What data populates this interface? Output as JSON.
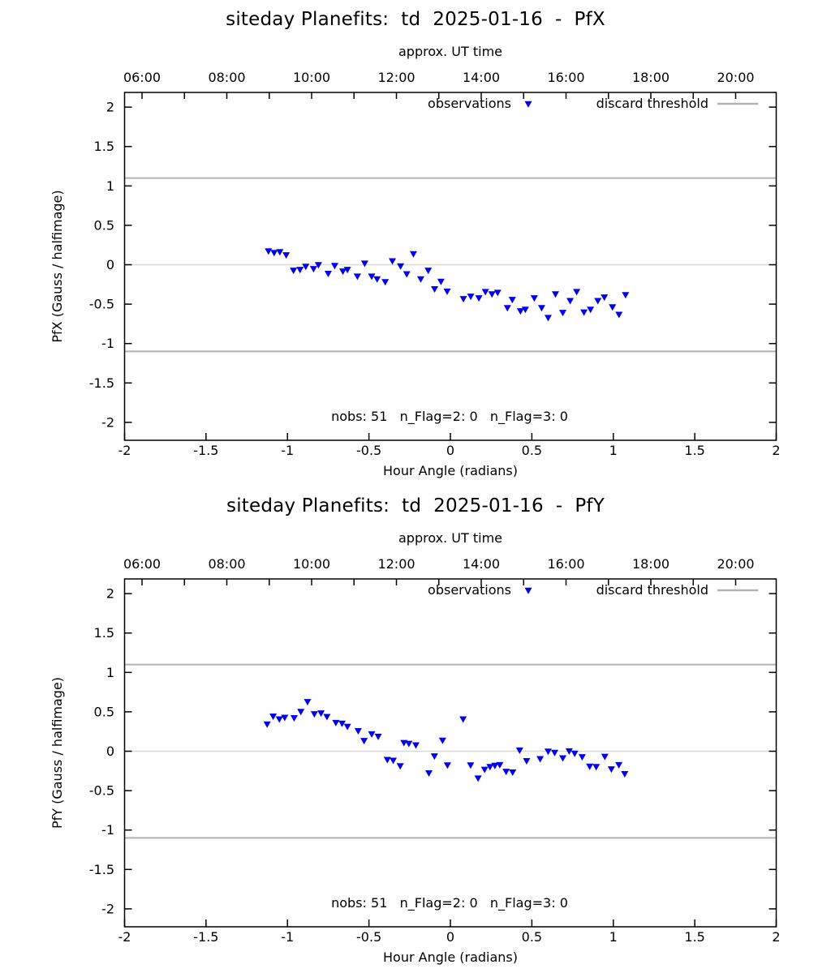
{
  "page": {
    "background": "#ffffff"
  },
  "chart_data": [
    {
      "type": "scatter",
      "title": "siteday Planefits:  td  2025-01-16  -  PfX",
      "top_axis": {
        "label": "approx. UT time",
        "tick_labels": [
          "06:00",
          "08:00",
          "10:00",
          "12:00",
          "14:00",
          "16:00",
          "18:00",
          "20:00"
        ]
      },
      "xlabel": "Hour Angle (radians)",
      "ylabel": "PfX (Gauss / halfimage)",
      "xlim": [
        -2,
        2
      ],
      "ylim": [
        -2.2,
        2.2
      ],
      "x_ticks": [
        -2,
        -1.5,
        -1,
        -0.5,
        0,
        0.5,
        1,
        1.5,
        2
      ],
      "x_tick_labels": [
        "-2",
        "-1.5",
        "-1",
        "-0.5",
        "0",
        "0.5",
        "1",
        "1.5",
        "2"
      ],
      "y_ticks": [
        -2,
        -1.5,
        -1,
        -0.5,
        0,
        0.5,
        1,
        1.5,
        2
      ],
      "y_tick_labels": [
        "-2",
        "-1.5",
        "-1",
        "-0.5",
        "0",
        "0.5",
        "1",
        "1.5",
        "2"
      ],
      "grid": "zero-line-only",
      "zero_line_y": 0,
      "threshold_y": [
        1.1,
        -1.1
      ],
      "annotation": "nobs: 51   n_Flag=2: 0   n_Flag=3: 0",
      "legend": [
        {
          "label": "observations",
          "symbol": "triangle-down"
        },
        {
          "label": "discard threshold",
          "symbol": "line"
        }
      ],
      "legend_position": "top-inside",
      "colors": {
        "marker": "#0000ee",
        "threshold": "#b3b3b3",
        "zero_line": "#d9d9d9",
        "border": "#000000"
      },
      "series": [
        {
          "name": "observations",
          "marker": "triangle-down",
          "color": "#0000ee",
          "points": [
            [
              -1.117,
              0.175
            ],
            [
              -1.082,
              0.155
            ],
            [
              -1.047,
              0.165
            ],
            [
              -1.008,
              0.125
            ],
            [
              -0.963,
              -0.07
            ],
            [
              -0.923,
              -0.06
            ],
            [
              -0.888,
              -0.02
            ],
            [
              -0.84,
              -0.05
            ],
            [
              -0.81,
              0.0
            ],
            [
              -0.75,
              -0.11
            ],
            [
              -0.71,
              -0.01
            ],
            [
              -0.66,
              -0.08
            ],
            [
              -0.632,
              -0.06
            ],
            [
              -0.571,
              -0.145
            ],
            [
              -0.526,
              0.02
            ],
            [
              -0.483,
              -0.145
            ],
            [
              -0.45,
              -0.18
            ],
            [
              -0.4,
              -0.215
            ],
            [
              -0.356,
              0.05
            ],
            [
              -0.306,
              -0.015
            ],
            [
              -0.268,
              -0.115
            ],
            [
              -0.227,
              0.14
            ],
            [
              -0.182,
              -0.18
            ],
            [
              -0.136,
              -0.07
            ],
            [
              -0.097,
              -0.305
            ],
            [
              -0.058,
              -0.21
            ],
            [
              -0.02,
              -0.335
            ],
            [
              0.08,
              -0.43
            ],
            [
              0.125,
              -0.4
            ],
            [
              0.175,
              -0.42
            ],
            [
              0.215,
              -0.34
            ],
            [
              0.255,
              -0.37
            ],
            [
              0.29,
              -0.35
            ],
            [
              0.35,
              -0.545
            ],
            [
              0.38,
              -0.44
            ],
            [
              0.43,
              -0.585
            ],
            [
              0.46,
              -0.565
            ],
            [
              0.515,
              -0.42
            ],
            [
              0.56,
              -0.545
            ],
            [
              0.6,
              -0.67
            ],
            [
              0.645,
              -0.37
            ],
            [
              0.69,
              -0.605
            ],
            [
              0.735,
              -0.455
            ],
            [
              0.775,
              -0.34
            ],
            [
              0.82,
              -0.6
            ],
            [
              0.86,
              -0.565
            ],
            [
              0.905,
              -0.455
            ],
            [
              0.945,
              -0.41
            ],
            [
              0.995,
              -0.535
            ],
            [
              1.035,
              -0.63
            ],
            [
              1.075,
              -0.38
            ]
          ]
        }
      ],
      "stats": {
        "nobs": 51,
        "n_flag_2": 0,
        "n_flag_3": 0
      }
    },
    {
      "type": "scatter",
      "title": "siteday Planefits:  td  2025-01-16  -  PfY",
      "top_axis": {
        "label": "approx. UT time",
        "tick_labels": [
          "06:00",
          "08:00",
          "10:00",
          "12:00",
          "14:00",
          "16:00",
          "18:00",
          "20:00"
        ]
      },
      "xlabel": "Hour Angle (radians)",
      "ylabel": "PfY (Gauss / halfimage)",
      "xlim": [
        -2,
        2
      ],
      "ylim": [
        -2.2,
        2.2
      ],
      "x_ticks": [
        -2,
        -1.5,
        -1,
        -0.5,
        0,
        0.5,
        1,
        1.5,
        2
      ],
      "x_tick_labels": [
        "-2",
        "-1.5",
        "-1",
        "-0.5",
        "0",
        "0.5",
        "1",
        "1.5",
        "2"
      ],
      "y_ticks": [
        -2,
        -1.5,
        -1,
        -0.5,
        0,
        0.5,
        1,
        1.5,
        2
      ],
      "y_tick_labels": [
        "-2",
        "-1.5",
        "-1",
        "-0.5",
        "0",
        "0.5",
        "1",
        "1.5",
        "2"
      ],
      "grid": "zero-line-only",
      "zero_line_y": 0,
      "threshold_y": [
        1.1,
        -1.1
      ],
      "annotation": "nobs: 51   n_Flag=2: 0   n_Flag=3: 0",
      "legend": [
        {
          "label": "observations",
          "symbol": "triangle-down"
        },
        {
          "label": "discard threshold",
          "symbol": "line"
        }
      ],
      "legend_position": "top-inside",
      "colors": {
        "marker": "#0000ee",
        "threshold": "#b3b3b3",
        "zero_line": "#d9d9d9",
        "border": "#000000"
      },
      "series": [
        {
          "name": "observations",
          "marker": "triangle-down",
          "color": "#0000ee",
          "points": [
            [
              -1.125,
              0.345
            ],
            [
              -1.088,
              0.445
            ],
            [
              -1.05,
              0.41
            ],
            [
              -1.017,
              0.43
            ],
            [
              -0.959,
              0.425
            ],
            [
              -0.918,
              0.505
            ],
            [
              -0.877,
              0.63
            ],
            [
              -0.835,
              0.475
            ],
            [
              -0.794,
              0.485
            ],
            [
              -0.758,
              0.44
            ],
            [
              -0.703,
              0.365
            ],
            [
              -0.665,
              0.355
            ],
            [
              -0.632,
              0.315
            ],
            [
              -0.566,
              0.26
            ],
            [
              -0.53,
              0.135
            ],
            [
              -0.483,
              0.22
            ],
            [
              -0.443,
              0.19
            ],
            [
              -0.387,
              -0.105
            ],
            [
              -0.351,
              -0.115
            ],
            [
              -0.308,
              -0.185
            ],
            [
              -0.285,
              0.11
            ],
            [
              -0.255,
              0.1
            ],
            [
              -0.212,
              0.08
            ],
            [
              -0.132,
              -0.275
            ],
            [
              -0.098,
              -0.06
            ],
            [
              -0.048,
              0.14
            ],
            [
              -0.018,
              -0.175
            ],
            [
              0.078,
              0.41
            ],
            [
              0.124,
              -0.175
            ],
            [
              0.17,
              -0.34
            ],
            [
              0.21,
              -0.23
            ],
            [
              0.243,
              -0.195
            ],
            [
              0.273,
              -0.18
            ],
            [
              0.303,
              -0.17
            ],
            [
              0.342,
              -0.255
            ],
            [
              0.382,
              -0.265
            ],
            [
              0.425,
              0.015
            ],
            [
              0.468,
              -0.12
            ],
            [
              0.551,
              -0.095
            ],
            [
              0.6,
              0.0
            ],
            [
              0.64,
              -0.015
            ],
            [
              0.69,
              -0.085
            ],
            [
              0.729,
              0.005
            ],
            [
              0.763,
              -0.025
            ],
            [
              0.809,
              -0.07
            ],
            [
              0.855,
              -0.19
            ],
            [
              0.895,
              -0.195
            ],
            [
              0.948,
              -0.065
            ],
            [
              0.988,
              -0.225
            ],
            [
              1.034,
              -0.17
            ],
            [
              1.07,
              -0.285
            ]
          ]
        }
      ],
      "stats": {
        "nobs": 51,
        "n_flag_2": 0,
        "n_flag_3": 0
      }
    }
  ]
}
